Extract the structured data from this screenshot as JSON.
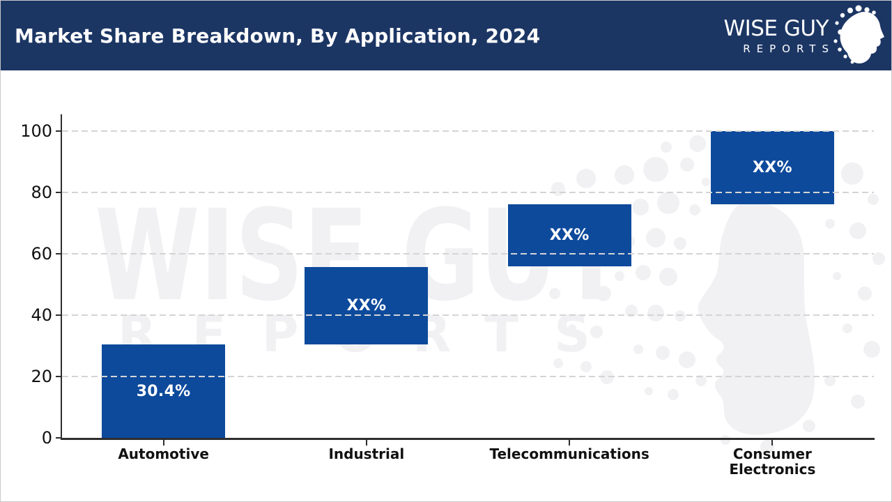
{
  "header": {
    "title": "Market Share Breakdown, By Application, 2024",
    "brand_name": "WISE GUY",
    "brand_sub": "REPORTS",
    "bg_color": "#1c3664"
  },
  "watermark": {
    "line1": "WISE GUY",
    "line2": "REPORTS"
  },
  "chart_data": {
    "type": "bar",
    "subtype": "floating-waterfall",
    "title": "Market Share Breakdown, By Application, 2024",
    "categories": [
      "Automotive",
      "Industrial",
      "Telecommunications",
      "Consumer\nElectronics"
    ],
    "segments": [
      {
        "category": "Automotive",
        "start": 0,
        "end": 30.4,
        "label": "30.4%"
      },
      {
        "category": "Industrial",
        "start": 30.4,
        "end": 55.6,
        "label": "XX%"
      },
      {
        "category": "Telecommunications",
        "start": 55.9,
        "end": 76.1,
        "label": "XX%"
      },
      {
        "category": "Consumer\nElectronics",
        "start": 76.1,
        "end": 100,
        "label": "XX%"
      }
    ],
    "xlabel": "",
    "ylabel": "",
    "ylim": [
      0,
      100
    ],
    "yticks": [
      0,
      20,
      40,
      60,
      80,
      100
    ],
    "grid": "horizontal-dashed",
    "legend": "none",
    "bar_color": "#0d4a9c",
    "bar_label_color": "#ffffff",
    "axis_color": "#2e2e2e",
    "gridline_color": "#d4d4d4",
    "watermark_color": "#f1f1f3"
  }
}
